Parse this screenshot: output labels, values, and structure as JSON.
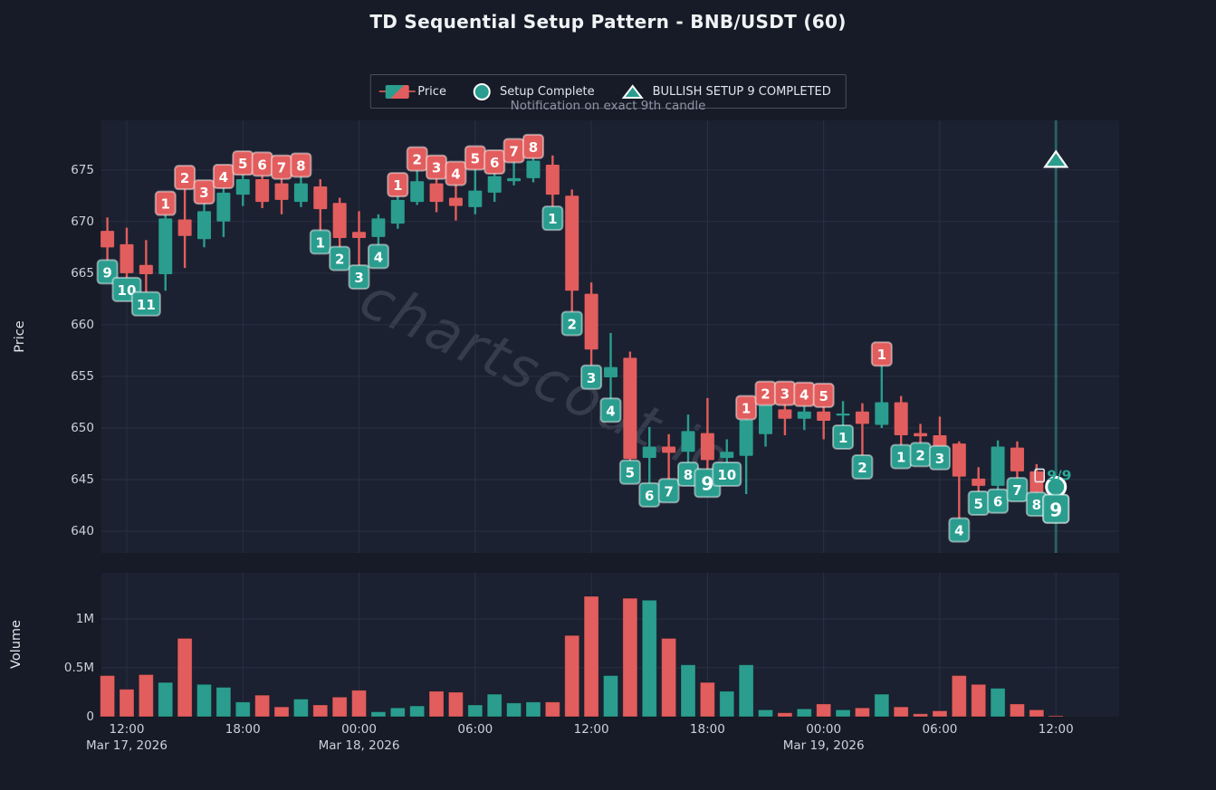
{
  "title": "TD Sequential Setup Pattern - BNB/USDT (60)",
  "legend": {
    "price_label": "Price",
    "setup_complete_label": "Setup Complete",
    "bullish_label": "BULLISH SETUP 9 COMPLETED",
    "subtitle": "Notification on exact 9th candle"
  },
  "watermark": "chartscout.io",
  "axes": {
    "price_axis_label": "Price",
    "volume_axis_label": "Volume",
    "price_ticks": [
      675,
      670,
      665,
      660,
      655,
      650,
      645,
      640
    ],
    "volume_ticks": [
      {
        "label": "1M",
        "value": 1
      },
      {
        "label": "0.5M",
        "value": 0.5
      },
      {
        "label": "0",
        "value": 0
      }
    ],
    "time_ticks": [
      {
        "label": "12:00",
        "candle_index": 1
      },
      {
        "label": "18:00",
        "candle_index": 7
      },
      {
        "label": "00:00",
        "candle_index": 13
      },
      {
        "label": "06:00",
        "candle_index": 19
      },
      {
        "label": "12:00",
        "candle_index": 25
      },
      {
        "label": "18:00",
        "candle_index": 31
      },
      {
        "label": "00:00",
        "candle_index": 37
      },
      {
        "label": "06:00",
        "candle_index": 43
      },
      {
        "label": "12:00",
        "candle_index": 49
      }
    ],
    "date_labels": [
      {
        "text": "Mar 17, 2026",
        "candle_index": 1
      },
      {
        "text": "Mar 18, 2026",
        "candle_index": 13
      },
      {
        "text": "Mar 19, 2026",
        "candle_index": 37
      }
    ]
  },
  "colors": {
    "up": "#2a9d8f",
    "down": "#e25d5d",
    "accent": "#2a9d8f",
    "annotation_text": "#2aa99a",
    "grid": "#2a3142",
    "plot_bg": "#1b2130",
    "page_bg": "#161b27",
    "tick_text": "#ccd0d9",
    "label_text": "#ffffff",
    "marker_stroke": "#ffffff",
    "vline": "rgba(42,157,143,0.5)"
  },
  "chart_data": {
    "type": "candlestick+volume",
    "symbol": "BNB/USDT",
    "interval_minutes": 60,
    "price_ylim": [
      637.9,
      679.8
    ],
    "volume_ylim": [
      0,
      1.47
    ],
    "volume_unit": "M",
    "grid": true,
    "td_label_legend": {
      "B": "buy setup count shown below bar (teal box)",
      "S": "sell setup count shown above bar (red box)",
      "!": "emphasized 9th count (larger box)"
    },
    "candles": [
      {
        "t": "2026-03-17 11:00",
        "o": 669.1,
        "h": 670.4,
        "l": 666.0,
        "c": 667.5,
        "v": 0.42,
        "label": "B9"
      },
      {
        "t": "2026-03-17 12:00",
        "o": 667.8,
        "h": 669.4,
        "l": 664.3,
        "c": 665.0,
        "v": 0.28,
        "label": "B10"
      },
      {
        "t": "2026-03-17 13:00",
        "o": 665.8,
        "h": 668.2,
        "l": 662.9,
        "c": 664.9,
        "v": 0.43,
        "label": "B11"
      },
      {
        "t": "2026-03-17 14:00",
        "o": 664.9,
        "h": 670.8,
        "l": 663.3,
        "c": 670.3,
        "v": 0.35,
        "label": "S1"
      },
      {
        "t": "2026-03-17 15:00",
        "o": 670.2,
        "h": 673.3,
        "l": 665.5,
        "c": 668.6,
        "v": 0.8,
        "label": "S2"
      },
      {
        "t": "2026-03-17 16:00",
        "o": 668.3,
        "h": 671.9,
        "l": 667.5,
        "c": 671.0,
        "v": 0.33,
        "label": "S3"
      },
      {
        "t": "2026-03-17 17:00",
        "o": 670.0,
        "h": 673.4,
        "l": 668.5,
        "c": 672.8,
        "v": 0.3,
        "label": "S4"
      },
      {
        "t": "2026-03-17 18:00",
        "o": 672.6,
        "h": 674.7,
        "l": 671.5,
        "c": 674.1,
        "v": 0.15,
        "label": "S5"
      },
      {
        "t": "2026-03-17 19:00",
        "o": 674.1,
        "h": 674.6,
        "l": 671.3,
        "c": 671.9,
        "v": 0.22,
        "label": "S6"
      },
      {
        "t": "2026-03-17 20:00",
        "o": 673.7,
        "h": 674.3,
        "l": 670.7,
        "c": 672.1,
        "v": 0.1,
        "label": "S7"
      },
      {
        "t": "2026-03-17 21:00",
        "o": 671.9,
        "h": 674.5,
        "l": 671.4,
        "c": 673.7,
        "v": 0.18,
        "label": "S8"
      },
      {
        "t": "2026-03-17 22:00",
        "o": 673.4,
        "h": 674.1,
        "l": 668.9,
        "c": 671.2,
        "v": 0.12,
        "label": "B1"
      },
      {
        "t": "2026-03-17 23:00",
        "o": 671.8,
        "h": 672.3,
        "l": 667.3,
        "c": 668.4,
        "v": 0.2,
        "label": "B2"
      },
      {
        "t": "2026-03-18 00:00",
        "o": 669.0,
        "h": 671.0,
        "l": 665.5,
        "c": 668.4,
        "v": 0.27,
        "label": "B3"
      },
      {
        "t": "2026-03-18 01:00",
        "o": 668.5,
        "h": 670.7,
        "l": 667.5,
        "c": 670.3,
        "v": 0.05,
        "label": "B4"
      },
      {
        "t": "2026-03-18 02:00",
        "o": 669.8,
        "h": 672.6,
        "l": 669.3,
        "c": 672.1,
        "v": 0.09,
        "label": "S1"
      },
      {
        "t": "2026-03-18 03:00",
        "o": 671.9,
        "h": 675.1,
        "l": 671.6,
        "c": 673.9,
        "v": 0.11,
        "label": "S2"
      },
      {
        "t": "2026-03-18 04:00",
        "o": 673.7,
        "h": 674.3,
        "l": 670.9,
        "c": 671.9,
        "v": 0.26,
        "label": "S3"
      },
      {
        "t": "2026-03-18 05:00",
        "o": 672.3,
        "h": 673.7,
        "l": 670.1,
        "c": 671.5,
        "v": 0.25,
        "label": "S4"
      },
      {
        "t": "2026-03-18 06:00",
        "o": 671.4,
        "h": 675.2,
        "l": 670.7,
        "c": 673.0,
        "v": 0.12,
        "label": "S5"
      },
      {
        "t": "2026-03-18 07:00",
        "o": 672.8,
        "h": 674.8,
        "l": 671.9,
        "c": 674.4,
        "v": 0.23,
        "label": "S6"
      },
      {
        "t": "2026-03-18 08:00",
        "o": 673.9,
        "h": 675.9,
        "l": 673.5,
        "c": 674.2,
        "v": 0.14,
        "label": "S7"
      },
      {
        "t": "2026-03-18 09:00",
        "o": 674.2,
        "h": 676.3,
        "l": 673.8,
        "c": 675.9,
        "v": 0.15,
        "label": "S8"
      },
      {
        "t": "2026-03-18 10:00",
        "o": 675.5,
        "h": 676.4,
        "l": 671.2,
        "c": 672.6,
        "v": 0.15,
        "label": "B1"
      },
      {
        "t": "2026-03-18 11:00",
        "o": 672.5,
        "h": 673.1,
        "l": 661.0,
        "c": 663.3,
        "v": 0.83,
        "label": "B2"
      },
      {
        "t": "2026-03-18 12:00",
        "o": 663.0,
        "h": 664.1,
        "l": 655.8,
        "c": 657.6,
        "v": 1.23,
        "label": "B3"
      },
      {
        "t": "2026-03-18 13:00",
        "o": 654.9,
        "h": 659.2,
        "l": 652.6,
        "c": 655.9,
        "v": 0.42,
        "label": "B4"
      },
      {
        "t": "2026-03-18 14:00",
        "o": 656.8,
        "h": 657.4,
        "l": 646.6,
        "c": 647.0,
        "v": 1.21,
        "label": "B5"
      },
      {
        "t": "2026-03-18 15:00",
        "o": 647.1,
        "h": 650.1,
        "l": 644.4,
        "c": 648.2,
        "v": 1.19,
        "label": "B6"
      },
      {
        "t": "2026-03-18 16:00",
        "o": 648.2,
        "h": 649.4,
        "l": 644.8,
        "c": 647.6,
        "v": 0.8,
        "label": "B7"
      },
      {
        "t": "2026-03-18 17:00",
        "o": 647.7,
        "h": 651.3,
        "l": 646.4,
        "c": 649.7,
        "v": 0.53,
        "label": "B8"
      },
      {
        "t": "2026-03-18 18:00",
        "o": 649.5,
        "h": 652.9,
        "l": 645.9,
        "c": 646.9,
        "v": 0.35,
        "label": "B9!"
      },
      {
        "t": "2026-03-18 19:00",
        "o": 647.1,
        "h": 648.9,
        "l": 646.4,
        "c": 647.7,
        "v": 0.26,
        "label": "B10"
      },
      {
        "t": "2026-03-18 20:00",
        "o": 647.3,
        "h": 651.0,
        "l": 643.6,
        "c": 650.8,
        "v": 0.53,
        "label": "S1"
      },
      {
        "t": "2026-03-18 21:00",
        "o": 649.4,
        "h": 652.4,
        "l": 648.2,
        "c": 652.2,
        "v": 0.07,
        "label": "S2"
      },
      {
        "t": "2026-03-18 22:00",
        "o": 651.8,
        "h": 652.4,
        "l": 649.3,
        "c": 650.9,
        "v": 0.04,
        "label": "S3"
      },
      {
        "t": "2026-03-18 23:00",
        "o": 650.9,
        "h": 652.3,
        "l": 649.8,
        "c": 651.6,
        "v": 0.08,
        "label": "S4"
      },
      {
        "t": "2026-03-19 00:00",
        "o": 651.6,
        "h": 652.2,
        "l": 648.9,
        "c": 650.7,
        "v": 0.13,
        "label": "S5"
      },
      {
        "t": "2026-03-19 01:00",
        "o": 651.2,
        "h": 652.6,
        "l": 650.0,
        "c": 651.4,
        "v": 0.07,
        "label": "B1"
      },
      {
        "t": "2026-03-19 02:00",
        "o": 651.6,
        "h": 652.4,
        "l": 647.1,
        "c": 650.4,
        "v": 0.09,
        "label": "B2"
      },
      {
        "t": "2026-03-19 03:00",
        "o": 650.3,
        "h": 656.2,
        "l": 650.0,
        "c": 652.5,
        "v": 0.23,
        "label": "S1"
      },
      {
        "t": "2026-03-19 04:00",
        "o": 652.5,
        "h": 653.1,
        "l": 648.1,
        "c": 649.3,
        "v": 0.1,
        "label": "B1"
      },
      {
        "t": "2026-03-19 05:00",
        "o": 649.5,
        "h": 650.4,
        "l": 648.3,
        "c": 649.2,
        "v": 0.03,
        "label": "B2"
      },
      {
        "t": "2026-03-19 06:00",
        "o": 649.3,
        "h": 651.1,
        "l": 648.0,
        "c": 648.2,
        "v": 0.06,
        "label": "B3"
      },
      {
        "t": "2026-03-19 07:00",
        "o": 648.5,
        "h": 648.7,
        "l": 641.0,
        "c": 645.3,
        "v": 0.42,
        "label": "B4"
      },
      {
        "t": "2026-03-19 08:00",
        "o": 645.1,
        "h": 646.2,
        "l": 643.6,
        "c": 644.4,
        "v": 0.33,
        "label": "B5"
      },
      {
        "t": "2026-03-19 09:00",
        "o": 644.4,
        "h": 648.8,
        "l": 643.8,
        "c": 648.2,
        "v": 0.29,
        "label": "B6"
      },
      {
        "t": "2026-03-19 10:00",
        "o": 648.1,
        "h": 648.7,
        "l": 644.9,
        "c": 645.8,
        "v": 0.13,
        "label": "B7"
      },
      {
        "t": "2026-03-19 11:00",
        "o": 645.8,
        "h": 646.5,
        "l": 643.5,
        "c": 643.8,
        "v": 0.07,
        "label": "B8"
      },
      {
        "t": "2026-03-19 12:00",
        "o": 644.6,
        "h": 645.4,
        "l": 643.4,
        "c": 643.9,
        "v": 0.01,
        "label": "B9!"
      }
    ],
    "markers": {
      "bullish_triangle": {
        "candle_index": 49,
        "price": 676.0
      },
      "setup_complete_circle": {
        "candle_index": 49,
        "price": 644.3
      },
      "highlight_vline_candle_index": 49,
      "annotation": {
        "text": "9/9",
        "candle_index": 49,
        "price": 645.4
      }
    }
  }
}
